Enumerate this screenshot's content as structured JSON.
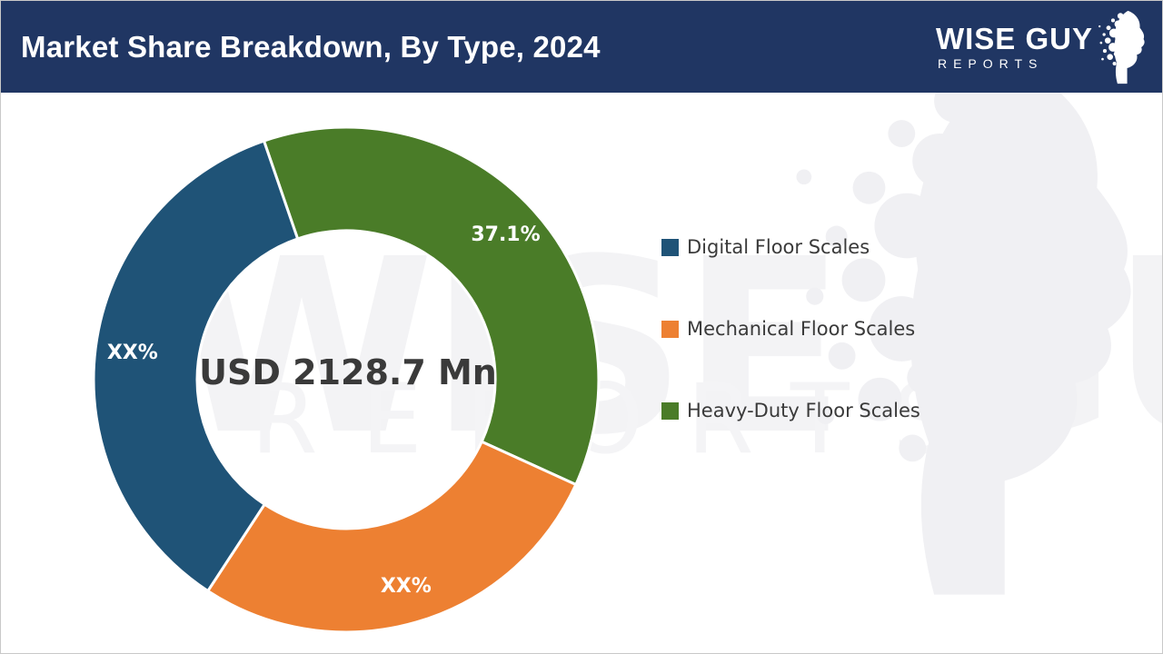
{
  "header": {
    "title": "Market Share Breakdown, By Type, 2024",
    "logo": {
      "line1": "WISE GUY",
      "line2": "REPORTS"
    }
  },
  "watermark": {
    "brand": "WISE GU",
    "sub": "REPORTS"
  },
  "chart_data": {
    "type": "pie",
    "variant": "donut",
    "title": "Market Share Breakdown, By Type, 2024",
    "center_label": "USD 2128.7 Mn",
    "start_angle_deg_clockwise_from_top": -19,
    "donut_hole_ratio": 0.59,
    "legend_position": "right",
    "slices": [
      {
        "name": "Heavy-Duty Floor Scales",
        "label": "37.1%",
        "value_pct": 37.1,
        "color": "#4a7c28"
      },
      {
        "name": "Mechanical Floor Scales",
        "label": "XX%",
        "value_pct": 27.4,
        "color": "#ed8032"
      },
      {
        "name": "Digital Floor Scales",
        "label": "XX%",
        "value_pct": 35.5,
        "color": "#1f5377"
      }
    ],
    "legend": [
      {
        "label": "Digital Floor Scales",
        "color": "#1f5377"
      },
      {
        "label": "Mechanical Floor Scales",
        "color": "#ed8032"
      },
      {
        "label": "Heavy-Duty Floor Scales",
        "color": "#4a7c28"
      }
    ]
  }
}
